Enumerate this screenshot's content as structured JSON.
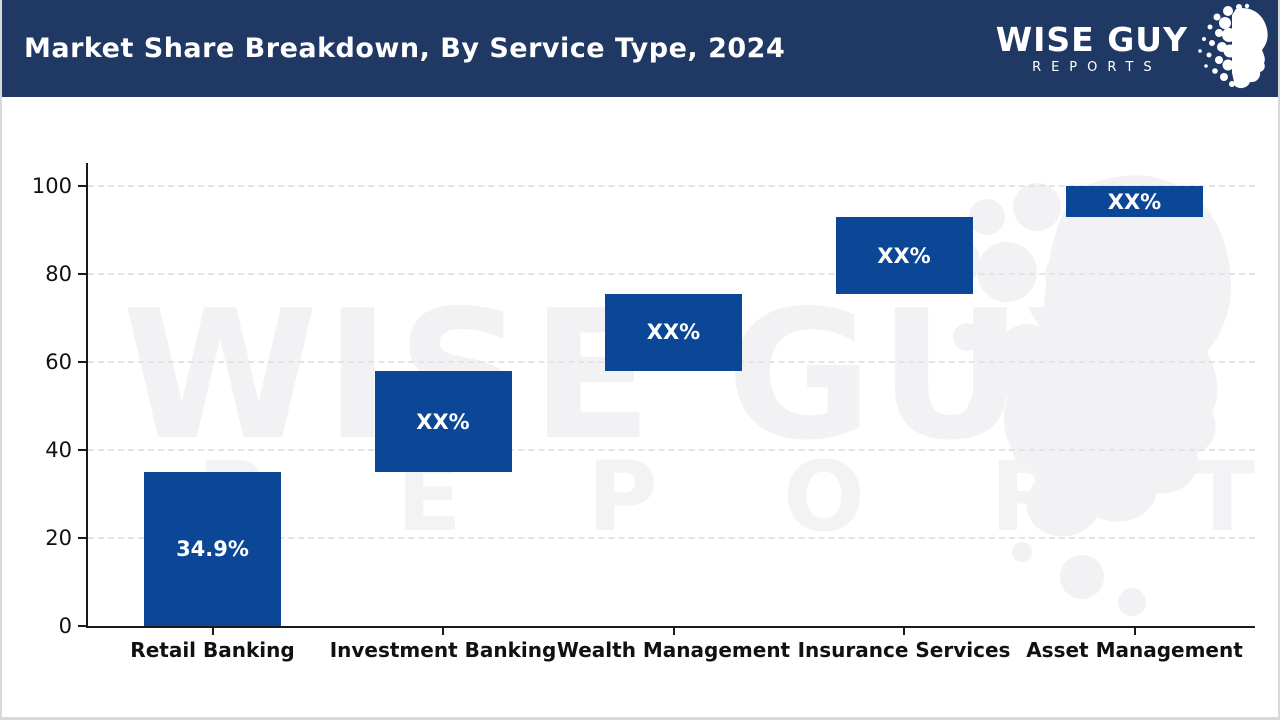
{
  "header": {
    "title": "Market Share Breakdown, By Service Type, 2024",
    "bg_color": "#1f3864",
    "logo": {
      "line1": "WISE GUY",
      "line2": "REPORTS"
    }
  },
  "watermark": {
    "line1": "WISE GUY",
    "line2": "REPORTS"
  },
  "chart_data": {
    "type": "bar",
    "subtype": "waterfall",
    "title": "Market Share Breakdown, By Service Type, 2024",
    "xlabel": "",
    "ylabel": "",
    "ylim": [
      0,
      100
    ],
    "yticks": [
      0,
      20,
      40,
      60,
      80,
      100
    ],
    "grid": "horizontal-dashed",
    "legend": "none",
    "bar_color": "#0b4796",
    "bar_label_color": "#ffffff",
    "categories": [
      "Retail Banking",
      "Investment Banking",
      "Wealth Management",
      "Insurance Services",
      "Asset Management"
    ],
    "segments": [
      {
        "category": "Retail Banking",
        "start": 0,
        "end": 34.9,
        "value": 34.9,
        "label": "34.9%"
      },
      {
        "category": "Investment Banking",
        "start": 34.9,
        "end": 58.0,
        "value": 23.1,
        "label": "XX%"
      },
      {
        "category": "Wealth Management",
        "start": 58.0,
        "end": 75.5,
        "value": 17.5,
        "label": "XX%"
      },
      {
        "category": "Insurance Services",
        "start": 75.5,
        "end": 92.9,
        "value": 17.4,
        "label": "XX%"
      },
      {
        "category": "Asset Management",
        "start": 92.9,
        "end": 100.0,
        "value": 7.1,
        "label": "XX%"
      }
    ]
  }
}
